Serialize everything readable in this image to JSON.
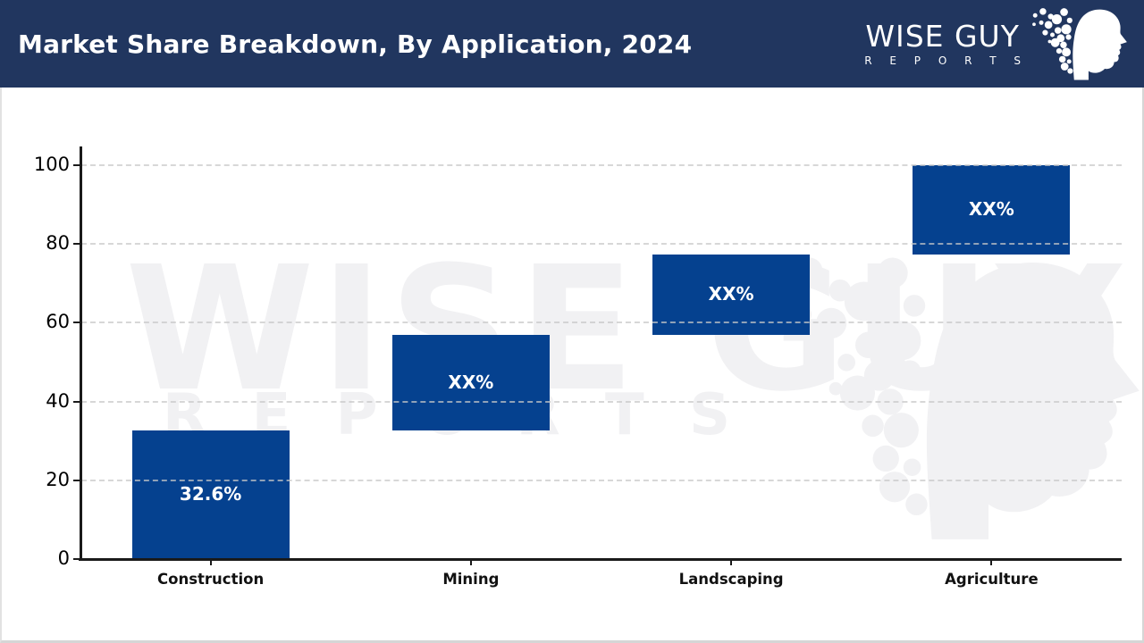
{
  "header": {
    "title": "Market Share Breakdown, By Application, 2024",
    "logo": {
      "line1": "WISE GUY",
      "line2": "R E P O R T S"
    }
  },
  "watermark": {
    "line1": "WISE GUY",
    "line2": "R E P O R T S"
  },
  "chart_data": {
    "type": "bar",
    "subtype": "waterfall",
    "title": "Market Share Breakdown, By Application, 2024",
    "categories": [
      "Construction",
      "Mining",
      "Landscaping",
      "Agriculture"
    ],
    "segments": [
      {
        "category": "Construction",
        "start": 0,
        "end": 32.6,
        "label": "32.6%"
      },
      {
        "category": "Mining",
        "start": 32.6,
        "end": 57.0,
        "label": "XX%"
      },
      {
        "category": "Landscaping",
        "start": 57.0,
        "end": 77.4,
        "label": "XX%"
      },
      {
        "category": "Agriculture",
        "start": 77.4,
        "end": 100,
        "label": "XX%"
      }
    ],
    "xlabel": "",
    "ylabel": "",
    "y_ticks": [
      0,
      20,
      40,
      60,
      80,
      100
    ],
    "ylim": [
      0,
      104.8
    ],
    "grid": "horizontal-dashed",
    "legend": "none",
    "colors": {
      "bar": "#05418f",
      "bar_label": "#ffffff",
      "header_bg": "#21365f",
      "axis": "#1a1a1a",
      "gridline": "#c8c8c8",
      "watermark": "#f1f1f3"
    }
  }
}
